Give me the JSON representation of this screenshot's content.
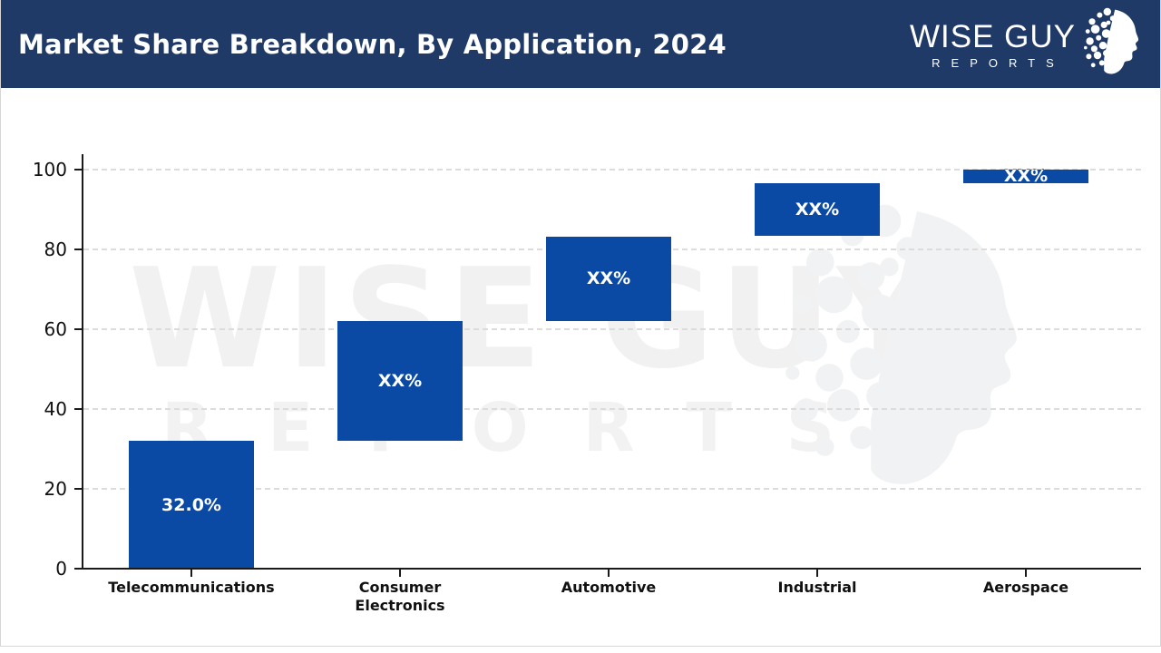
{
  "header": {
    "title": "Market Share Breakdown, By Application, 2024",
    "logo": {
      "line1": "WISE GUY",
      "line2": "REPORTS"
    }
  },
  "watermark": {
    "line1": "WISE GUY",
    "line2": "REPORTS"
  },
  "colors": {
    "header_bg": "#203a67",
    "bar": "#0a4aa5",
    "grid": "#dcdcdc",
    "axis": "#1a1a1a",
    "bar_label_inside": "#ffffff",
    "bar_label_outside": "#111111",
    "watermark": "#f1f1f2"
  },
  "chart_data": {
    "type": "bar",
    "subtype": "waterfall-stacked-breakdown",
    "title": "Market Share Breakdown, By Application, 2024",
    "categories": [
      "Telecommunications",
      "Consumer Electronics",
      "Automotive",
      "Industrial",
      "Aerospace"
    ],
    "category_display": [
      "Telecommunications",
      "Consumer\nElectronics",
      "Automotive",
      "Industrial",
      "Aerospace"
    ],
    "segments": [
      {
        "category": "Telecommunications",
        "start": 0,
        "end": 32,
        "value_label": "32.0%"
      },
      {
        "category": "Consumer Electronics",
        "start": 32,
        "end": 62,
        "value_label": "XX%"
      },
      {
        "category": "Automotive",
        "start": 62,
        "end": 83.2,
        "value_label": "XX%"
      },
      {
        "category": "Industrial",
        "start": 83.2,
        "end": 96.4,
        "value_label": "XX%"
      },
      {
        "category": "Aerospace",
        "start": 96.4,
        "end": 100,
        "value_label": "XX%"
      }
    ],
    "xlabel": "",
    "ylabel": "",
    "ylim": [
      0,
      103.5
    ],
    "yticks": [
      0,
      20,
      40,
      60,
      80,
      100
    ],
    "grid": "horizontal-dashed",
    "legend": "none"
  }
}
